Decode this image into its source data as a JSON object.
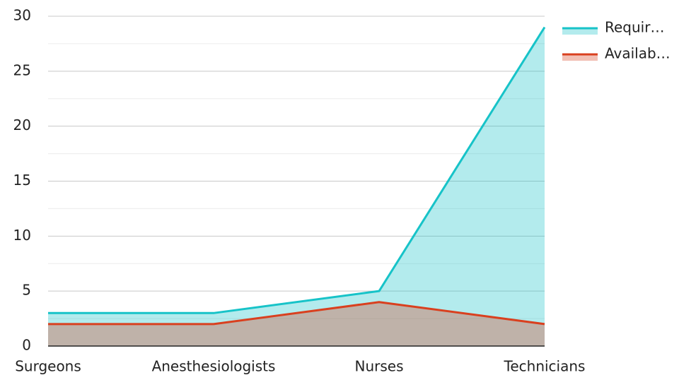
{
  "chart_data": {
    "type": "area",
    "categories": [
      "Surgeons",
      "Anesthesiologists",
      "Nurses",
      "Technicians"
    ],
    "series": [
      {
        "name": "Requir…",
        "color": "#17c3c8",
        "values": [
          3,
          3,
          5,
          29
        ]
      },
      {
        "name": "Availab…",
        "color": "#d9401f",
        "values": [
          2,
          2,
          4,
          2
        ]
      }
    ],
    "ylim": [
      0,
      30
    ],
    "yticks": [
      0,
      5,
      10,
      15,
      20,
      25,
      30
    ],
    "grid": true,
    "legend": "right"
  }
}
